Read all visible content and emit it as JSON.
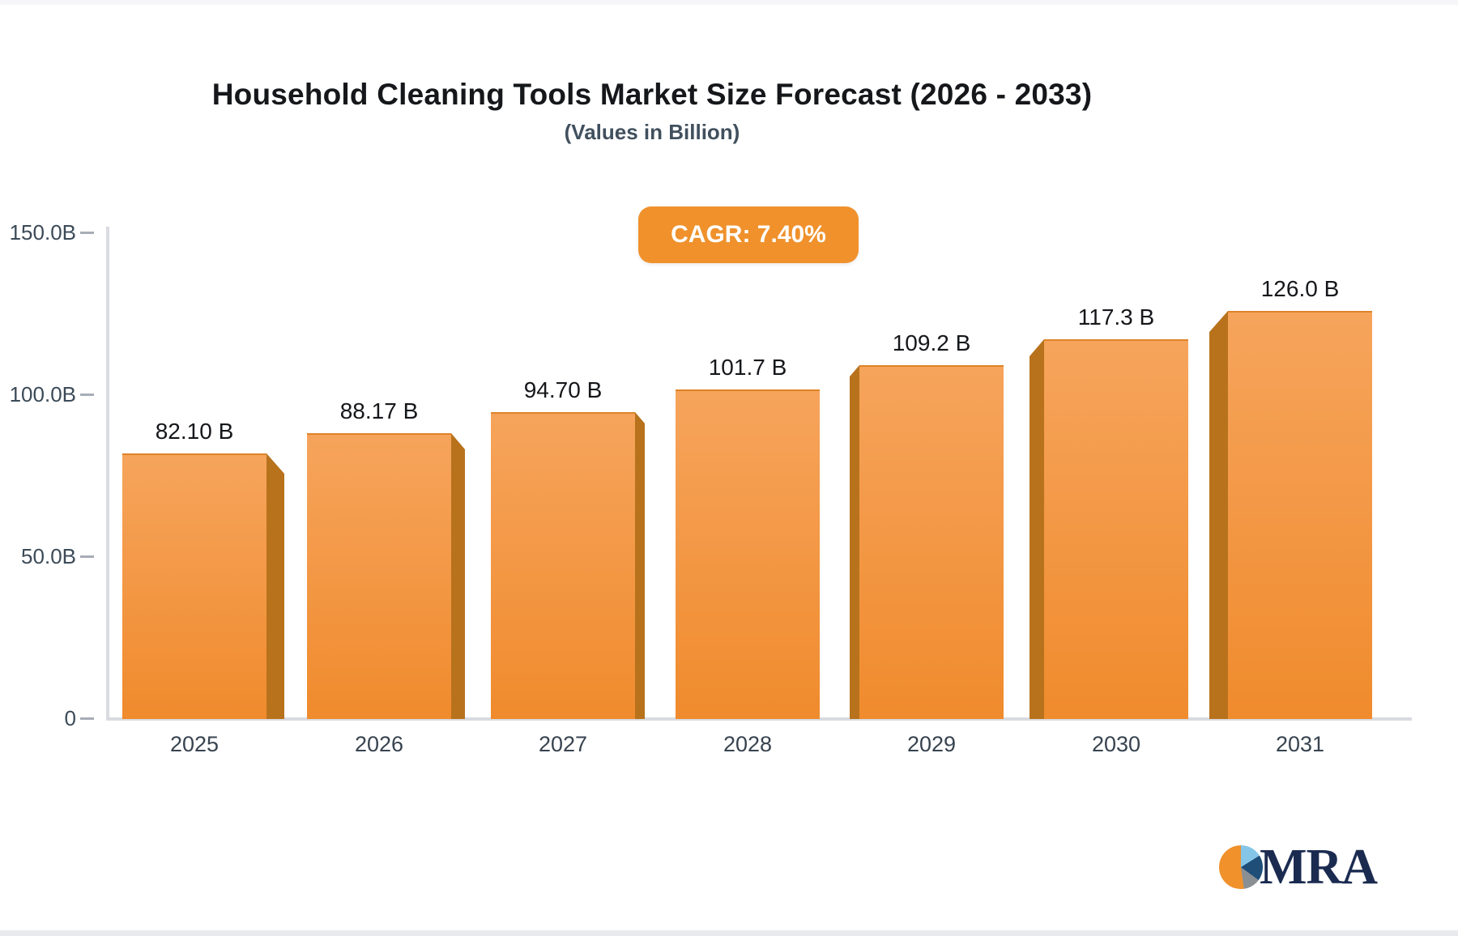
{
  "page": {
    "background": "#ffffff",
    "top_strip_color": "#f6f6f8",
    "bottom_strip_color": "#e8eaee"
  },
  "header": {
    "title": "Household Cleaning Tools Market Size Forecast (2026 - 2033)",
    "subtitle": "(Values in Billion)"
  },
  "badge": {
    "label": "CAGR: 7.40%",
    "bg": "#f0912c",
    "text_color": "#ffffff"
  },
  "chart_data": {
    "type": "bar",
    "title": "Household Cleaning Tools Market Size Forecast (2026 - 2033)",
    "subtitle": "(Values in Billion)",
    "categories": [
      "2025",
      "2026",
      "2027",
      "2028",
      "2029",
      "2030",
      "2031"
    ],
    "values": [
      82.1,
      88.17,
      94.7,
      101.7,
      109.2,
      117.3,
      126.0
    ],
    "value_labels": [
      "82.10 B",
      "88.17 B",
      "94.70 B",
      "101.7 B",
      "109.2 B",
      "117.3 B",
      "126.0 B"
    ],
    "y_ticks": [
      {
        "label": "150.0B",
        "value": 150
      },
      {
        "label": "100.0B",
        "value": 100
      },
      {
        "label": "50.0B",
        "value": 50
      },
      {
        "label": "0",
        "value": 0
      }
    ],
    "ylim": [
      0,
      155
    ],
    "grid": false,
    "legend": "none",
    "annotation": "CAGR: 7.40%",
    "bar_face_top_color": "#f6a45c",
    "bar_face_bottom_color": "#f08b2d",
    "bar_side_color": "#b8721c",
    "axis_color": "#d9dbe0",
    "tick_text_color": "#3c4a58",
    "value_text_color": "#15171a"
  },
  "logo": {
    "text": "MRA",
    "pie_orange": "#f0912c",
    "pie_lightblue": "#85c6e8",
    "pie_navy": "#1f4e79",
    "pie_gray": "#8a8f94",
    "text_color": "#1b2b50"
  }
}
